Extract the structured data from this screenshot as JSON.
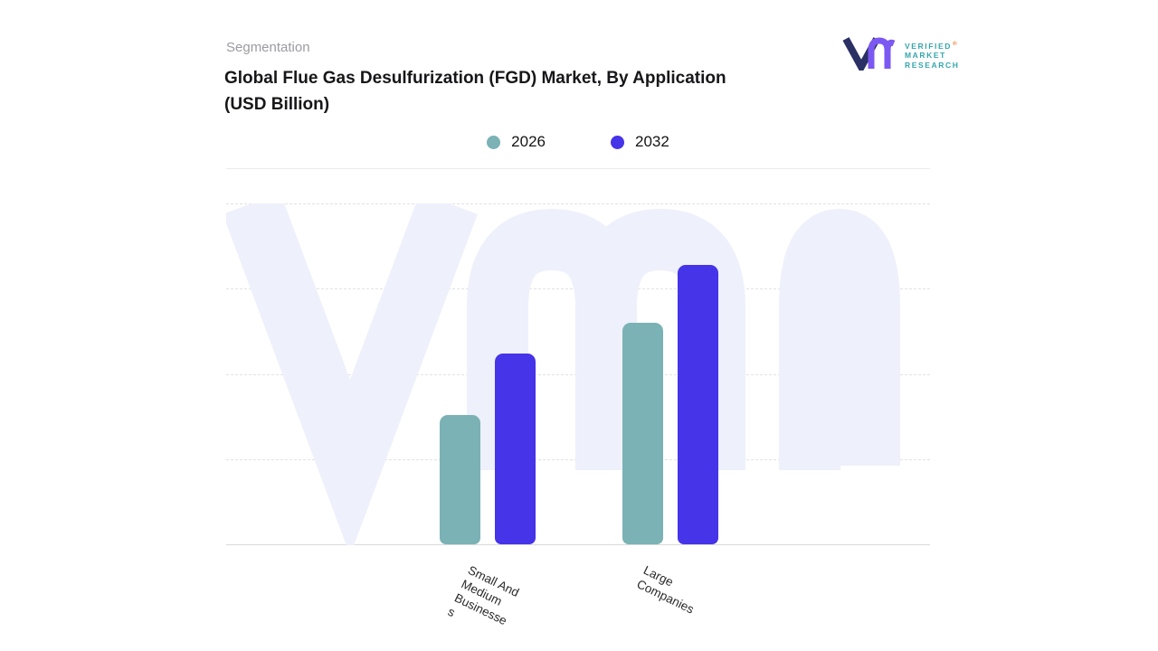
{
  "header": {
    "eyebrow": "Segmentation",
    "title": "Global  Flue Gas Desulfurization (FGD) Market, By Application (USD Billion)"
  },
  "logo": {
    "lines": [
      "VERIFIED",
      "MARKET",
      "RESEARCH"
    ],
    "registered": "®",
    "mark_colors": {
      "v": "#2a3064",
      "mr": "#7c58f2"
    },
    "text_color": "#35a6ab"
  },
  "chart_data": {
    "type": "bar",
    "title": "Global  Flue Gas Desulfurization (FGD) Market, By Application (USD Billion)",
    "categories": [
      "Small And Medium Businesses",
      "Large Companies"
    ],
    "series": [
      {
        "name": "2026",
        "color": "#7ab2b5",
        "values": [
          38,
          65
        ]
      },
      {
        "name": "2032",
        "color": "#4634e9",
        "values": [
          56,
          82
        ]
      }
    ],
    "xlabel": "",
    "ylabel": "",
    "ylim": [
      0,
      100
    ],
    "y_axis_labels_visible": false,
    "values_are_estimates_relative_units": true,
    "grid": "horizontal-dashed",
    "legend_position": "top-center",
    "watermark_color": "#eef0fb",
    "axis_line_color": "#dadada"
  }
}
